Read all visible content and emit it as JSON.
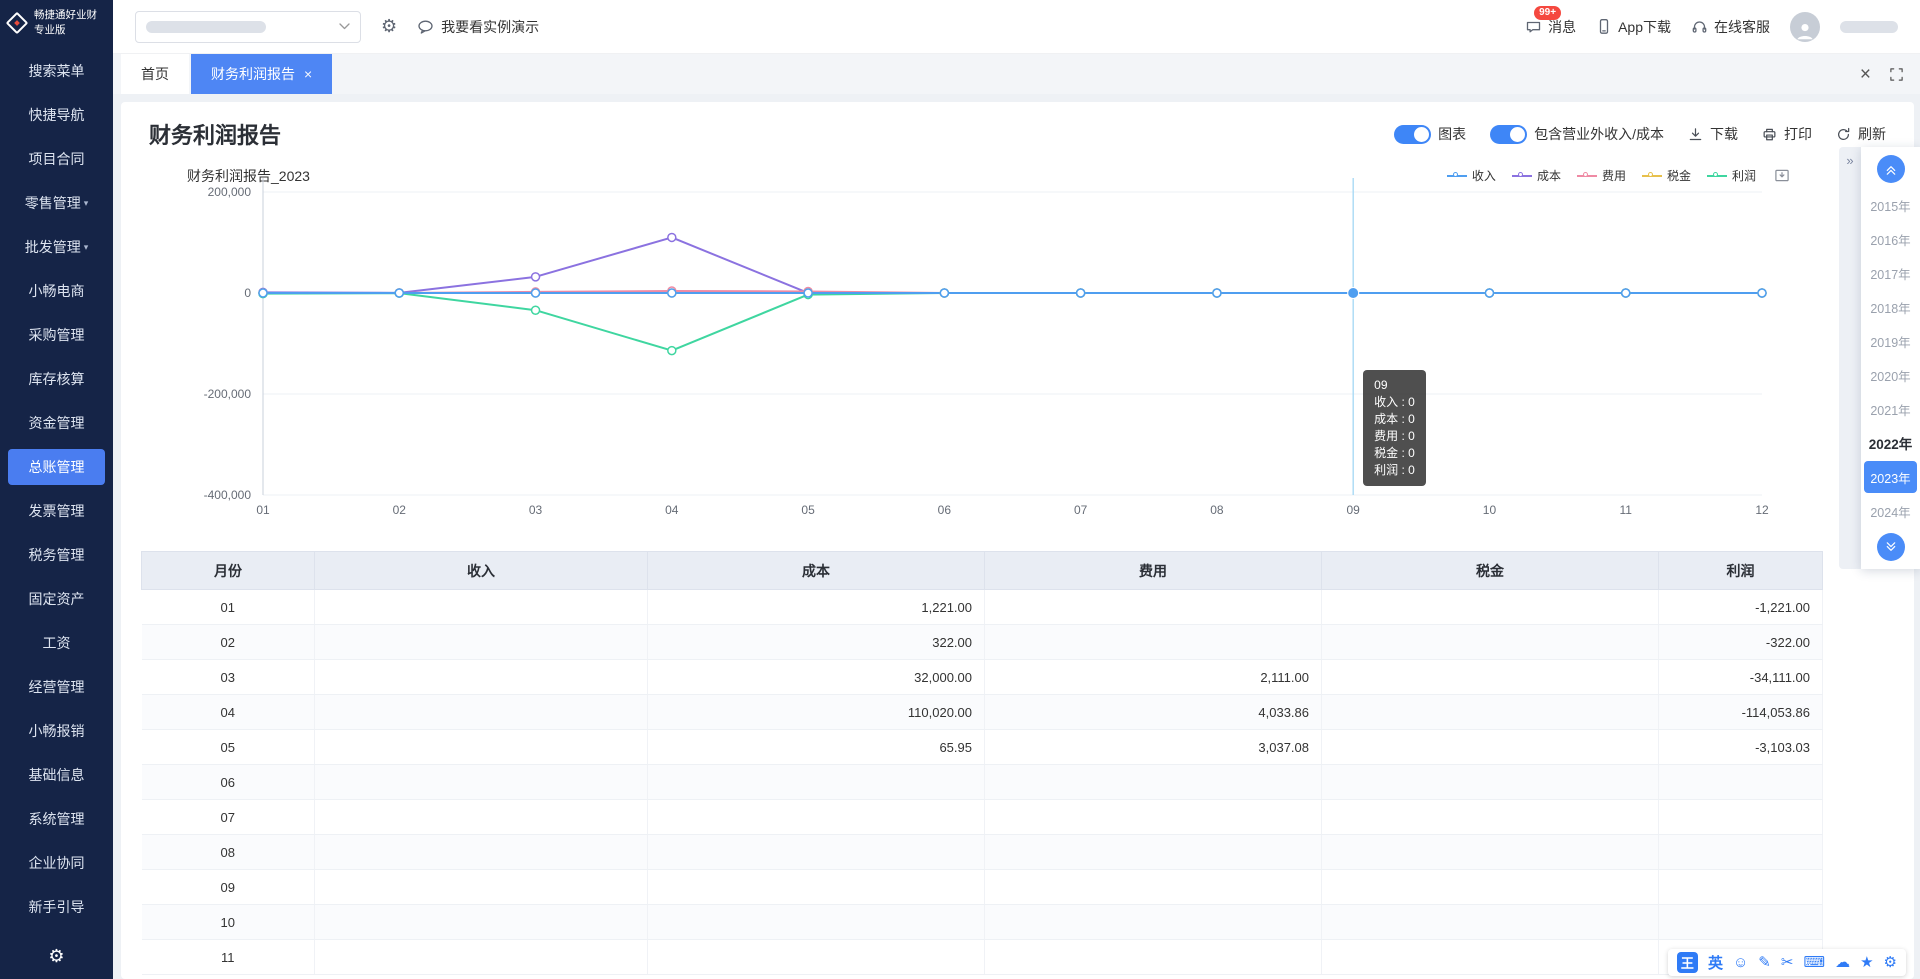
{
  "app": {
    "brand_line1": "畅捷通好业财",
    "brand_line2": "专业版"
  },
  "sidebar": {
    "items": [
      {
        "label": "搜索菜单"
      },
      {
        "label": "快捷导航"
      },
      {
        "label": "项目合同"
      },
      {
        "label": "零售管理",
        "expandable": true
      },
      {
        "label": "批发管理",
        "expandable": true
      },
      {
        "label": "小畅电商"
      },
      {
        "label": "采购管理"
      },
      {
        "label": "库存核算"
      },
      {
        "label": "资金管理"
      },
      {
        "label": "总账管理",
        "active": true
      },
      {
        "label": "发票管理"
      },
      {
        "label": "税务管理"
      },
      {
        "label": "固定资产"
      },
      {
        "label": "工资"
      },
      {
        "label": "经营管理"
      },
      {
        "label": "小畅报销"
      },
      {
        "label": "基础信息"
      },
      {
        "label": "系统管理"
      },
      {
        "label": "企业协同"
      },
      {
        "label": "新手引导"
      }
    ]
  },
  "topbar": {
    "demo_link": "我要看实例演示",
    "messages_label": "消息",
    "messages_badge": "99+",
    "app_download_label": "App下载",
    "support_label": "在线客服"
  },
  "tabs": [
    {
      "label": "首页",
      "active": false,
      "closable": false
    },
    {
      "label": "财务利润报告",
      "active": true,
      "closable": true
    }
  ],
  "page": {
    "title": "财务利润报告",
    "toggle_chart_label": "图表",
    "toggle_include_label": "包含营业外收入/成本",
    "download_label": "下载",
    "print_label": "打印",
    "refresh_label": "刷新"
  },
  "chart_data": {
    "type": "line",
    "title": "财务利润报告_2023",
    "categories": [
      "01",
      "02",
      "03",
      "04",
      "05",
      "06",
      "07",
      "08",
      "09",
      "10",
      "11",
      "12"
    ],
    "series": [
      {
        "name": "收入",
        "color": "#4f9ef0",
        "values": [
          0,
          0,
          0,
          0,
          0,
          0,
          0,
          0,
          0,
          0,
          0,
          0
        ]
      },
      {
        "name": "成本",
        "color": "#8b72e0",
        "values": [
          1221,
          322,
          32000,
          110020,
          65.95,
          0,
          0,
          0,
          0,
          0,
          0,
          0
        ]
      },
      {
        "name": "费用",
        "color": "#ef8aa4",
        "values": [
          0,
          0,
          2111,
          4033.86,
          3037.08,
          0,
          0,
          0,
          0,
          0,
          0,
          0
        ]
      },
      {
        "name": "税金",
        "color": "#e7c04c",
        "values": [
          0,
          0,
          0,
          0,
          0,
          0,
          0,
          0,
          0,
          0,
          0,
          0
        ]
      },
      {
        "name": "利润",
        "color": "#3fd6a0",
        "values": [
          -1221,
          -322,
          -34111,
          -114053.86,
          -3103.03,
          0,
          0,
          0,
          0,
          0,
          0,
          0
        ]
      }
    ],
    "ylim": [
      -400000,
      200000
    ],
    "y_ticks": [
      200000,
      0,
      -200000,
      -400000
    ],
    "y_tick_labels": [
      "200,000",
      "0",
      "-200,000",
      "-400,000"
    ],
    "grid": true,
    "legend_position": "top-right",
    "hover_index": 8,
    "tooltip": {
      "title": "09",
      "rows": [
        "收入 : 0",
        "成本 : 0",
        "费用 : 0",
        "税金 : 0",
        "利润 : 0"
      ]
    }
  },
  "table": {
    "headers": [
      "月份",
      "收入",
      "成本",
      "费用",
      "税金",
      "利润"
    ],
    "rows": [
      [
        "01",
        "",
        "1,221.00",
        "",
        "",
        "-1,221.00"
      ],
      [
        "02",
        "",
        "322.00",
        "",
        "",
        "-322.00"
      ],
      [
        "03",
        "",
        "32,000.00",
        "2,111.00",
        "",
        "-34,111.00"
      ],
      [
        "04",
        "",
        "110,020.00",
        "4,033.86",
        "",
        "-114,053.86"
      ],
      [
        "05",
        "",
        "65.95",
        "3,037.08",
        "",
        "-3,103.03"
      ],
      [
        "06",
        "",
        "",
        "",
        "",
        ""
      ],
      [
        "07",
        "",
        "",
        "",
        "",
        ""
      ],
      [
        "08",
        "",
        "",
        "",
        "",
        ""
      ],
      [
        "09",
        "",
        "",
        "",
        "",
        ""
      ],
      [
        "10",
        "",
        "",
        "",
        "",
        ""
      ],
      [
        "11",
        "",
        "",
        "",
        "",
        ""
      ]
    ]
  },
  "year_panel": {
    "years": [
      "2015年",
      "2016年",
      "2017年",
      "2018年",
      "2019年",
      "2020年",
      "2021年",
      "2022年",
      "2023年",
      "2024年"
    ],
    "selected": "2023年",
    "highlighted": "2022年"
  },
  "ime_bar": {
    "lang_primary": "王",
    "lang_secondary": "英"
  }
}
